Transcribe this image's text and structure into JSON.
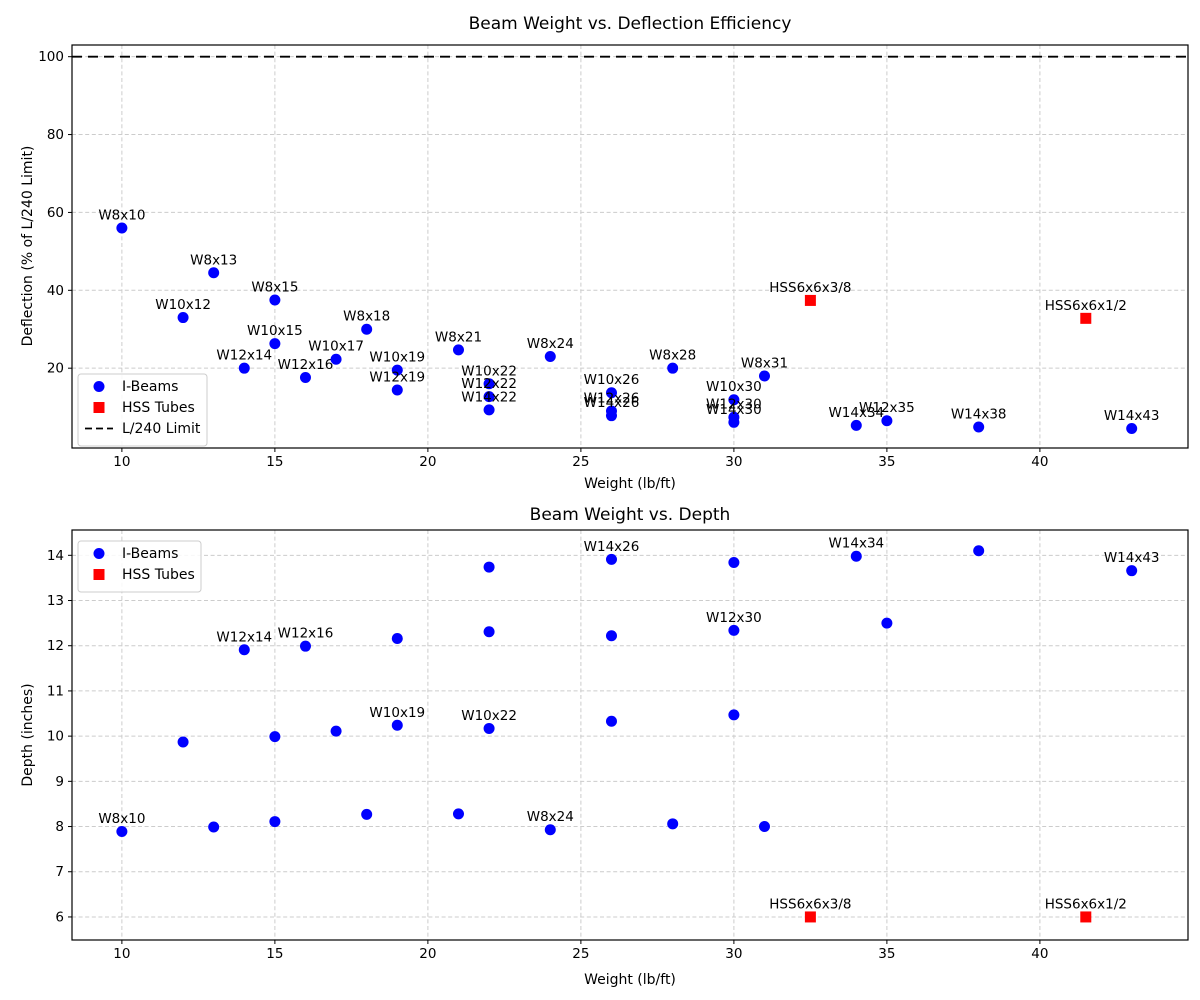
{
  "figure": {
    "background": "#ffffff",
    "ibeam_color": "#0000ff",
    "hss_color": "#ff0000",
    "limit_line_color": "#000000",
    "grid_color": "#cccccc"
  },
  "chart_data": [
    {
      "type": "scatter",
      "title": "Beam Weight vs. Deflection Efficiency",
      "xlabel": "Weight (lb/ft)",
      "ylabel": "Deflection (% of L/240 Limit)",
      "xlim": [
        8.37,
        44.84
      ],
      "ylim": [
        -0.5,
        103.0
      ],
      "xticks": [
        10,
        15,
        20,
        25,
        30,
        35,
        40
      ],
      "yticks": [
        20,
        40,
        60,
        80,
        100
      ],
      "grid": true,
      "reference_line": {
        "y": 100,
        "label": "L/240 Limit",
        "style": "dashed",
        "color": "#000000"
      },
      "legend": {
        "position": "lower-left",
        "entries": [
          {
            "label": "I-Beams",
            "marker": "circle",
            "color": "#0000ff"
          },
          {
            "label": "HSS Tubes",
            "marker": "square",
            "color": "#ff0000"
          },
          {
            "label": "L/240 Limit",
            "marker": "dashed-line",
            "color": "#000000"
          }
        ]
      },
      "series": [
        {
          "name": "I-Beams",
          "marker": "circle",
          "color": "#0000ff",
          "points": [
            {
              "label": "W8x10",
              "x": 10,
              "y": 56.0,
              "annotated": true
            },
            {
              "label": "W10x12",
              "x": 12,
              "y": 33.0,
              "annotated": true
            },
            {
              "label": "W8x13",
              "x": 13,
              "y": 44.5,
              "annotated": true
            },
            {
              "label": "W12x14",
              "x": 14,
              "y": 20.0,
              "annotated": true
            },
            {
              "label": "W8x15",
              "x": 15,
              "y": 37.5,
              "annotated": true
            },
            {
              "label": "W10x15",
              "x": 15,
              "y": 26.3,
              "annotated": true
            },
            {
              "label": "W12x16",
              "x": 16,
              "y": 17.6,
              "annotated": true
            },
            {
              "label": "W10x17",
              "x": 17,
              "y": 22.3,
              "annotated": true
            },
            {
              "label": "W8x18",
              "x": 18,
              "y": 30.0,
              "annotated": true
            },
            {
              "label": "W10x19",
              "x": 19,
              "y": 19.5,
              "annotated": true
            },
            {
              "label": "W12x19",
              "x": 19,
              "y": 14.4,
              "annotated": true
            },
            {
              "label": "W8x21",
              "x": 21,
              "y": 24.7,
              "annotated": true
            },
            {
              "label": "W10x22",
              "x": 22,
              "y": 16.0,
              "annotated": true
            },
            {
              "label": "W12x22",
              "x": 22,
              "y": 12.7,
              "annotated": true
            },
            {
              "label": "W14x22",
              "x": 22,
              "y": 9.3,
              "annotated": true
            },
            {
              "label": "W8x24",
              "x": 24,
              "y": 23.0,
              "annotated": true
            },
            {
              "label": "W10x26",
              "x": 26,
              "y": 13.7,
              "annotated": true
            },
            {
              "label": "W12x26",
              "x": 26,
              "y": 9.0,
              "annotated": true
            },
            {
              "label": "W14x26",
              "x": 26,
              "y": 7.8,
              "annotated": true
            },
            {
              "label": "W8x28",
              "x": 28,
              "y": 20.0,
              "annotated": true
            },
            {
              "label": "W10x30",
              "x": 30,
              "y": 11.9,
              "annotated": true
            },
            {
              "label": "W12x30",
              "x": 30,
              "y": 7.4,
              "annotated": true
            },
            {
              "label": "W14x30",
              "x": 30,
              "y": 6.1,
              "annotated": true
            },
            {
              "label": "W8x31",
              "x": 31,
              "y": 18.0,
              "annotated": true
            },
            {
              "label": "W14x34",
              "x": 34,
              "y": 5.3,
              "annotated": true
            },
            {
              "label": "W12x35",
              "x": 35,
              "y": 6.5,
              "annotated": true
            },
            {
              "label": "W14x38",
              "x": 38,
              "y": 4.9,
              "annotated": true
            },
            {
              "label": "W14x43",
              "x": 43,
              "y": 4.5,
              "annotated": true
            }
          ]
        },
        {
          "name": "HSS Tubes",
          "marker": "square",
          "color": "#ff0000",
          "points": [
            {
              "label": "HSS6x6x3/8",
              "x": 32.5,
              "y": 37.4,
              "annotated": true
            },
            {
              "label": "HSS6x6x1/2",
              "x": 41.5,
              "y": 32.8,
              "annotated": true
            }
          ]
        }
      ]
    },
    {
      "type": "scatter",
      "title": "Beam Weight vs. Depth",
      "xlabel": "Weight (lb/ft)",
      "ylabel": "Depth (inches)",
      "xlim": [
        8.37,
        44.84
      ],
      "ylim": [
        5.49,
        14.56
      ],
      "xticks": [
        10,
        15,
        20,
        25,
        30,
        35,
        40
      ],
      "yticks": [
        6,
        7,
        8,
        9,
        10,
        11,
        12,
        13,
        14
      ],
      "grid": true,
      "legend": {
        "position": "upper-left",
        "entries": [
          {
            "label": "I-Beams",
            "marker": "circle",
            "color": "#0000ff"
          },
          {
            "label": "HSS Tubes",
            "marker": "square",
            "color": "#ff0000"
          }
        ]
      },
      "series": [
        {
          "name": "I-Beams",
          "marker": "circle",
          "color": "#0000ff",
          "points": [
            {
              "label": "W8x10",
              "x": 10,
              "y": 7.89,
              "annotated": true
            },
            {
              "label": "W10x12",
              "x": 12,
              "y": 9.87,
              "annotated": false
            },
            {
              "label": "W8x13",
              "x": 13,
              "y": 7.99,
              "annotated": false
            },
            {
              "label": "W12x14",
              "x": 14,
              "y": 11.91,
              "annotated": true
            },
            {
              "label": "W8x15",
              "x": 15,
              "y": 8.11,
              "annotated": false
            },
            {
              "label": "W10x15",
              "x": 15,
              "y": 9.99,
              "annotated": false
            },
            {
              "label": "W12x16",
              "x": 16,
              "y": 11.99,
              "annotated": true
            },
            {
              "label": "W10x17",
              "x": 17,
              "y": 10.11,
              "annotated": false
            },
            {
              "label": "W8x18",
              "x": 18,
              "y": 8.27,
              "annotated": false
            },
            {
              "label": "W10x19",
              "x": 19,
              "y": 10.24,
              "annotated": true
            },
            {
              "label": "W12x19",
              "x": 19,
              "y": 12.16,
              "annotated": false
            },
            {
              "label": "W8x21",
              "x": 21,
              "y": 8.28,
              "annotated": false
            },
            {
              "label": "W10x22",
              "x": 22,
              "y": 10.17,
              "annotated": true
            },
            {
              "label": "W12x22",
              "x": 22,
              "y": 12.31,
              "annotated": false
            },
            {
              "label": "W14x22",
              "x": 22,
              "y": 13.74,
              "annotated": false
            },
            {
              "label": "W8x24",
              "x": 24,
              "y": 7.93,
              "annotated": true
            },
            {
              "label": "W10x26",
              "x": 26,
              "y": 10.33,
              "annotated": false
            },
            {
              "label": "W12x26",
              "x": 26,
              "y": 12.22,
              "annotated": false
            },
            {
              "label": "W14x26",
              "x": 26,
              "y": 13.91,
              "annotated": true
            },
            {
              "label": "W8x28",
              "x": 28,
              "y": 8.06,
              "annotated": false
            },
            {
              "label": "W10x30",
              "x": 30,
              "y": 10.47,
              "annotated": false
            },
            {
              "label": "W12x30",
              "x": 30,
              "y": 12.34,
              "annotated": true
            },
            {
              "label": "W14x30",
              "x": 30,
              "y": 13.84,
              "annotated": false
            },
            {
              "label": "W8x31",
              "x": 31,
              "y": 8.0,
              "annotated": false
            },
            {
              "label": "W14x34",
              "x": 34,
              "y": 13.98,
              "annotated": true
            },
            {
              "label": "W12x35",
              "x": 35,
              "y": 12.5,
              "annotated": false
            },
            {
              "label": "W14x38",
              "x": 38,
              "y": 14.1,
              "annotated": false
            },
            {
              "label": "W14x43",
              "x": 43,
              "y": 13.66,
              "annotated": true
            }
          ]
        },
        {
          "name": "HSS Tubes",
          "marker": "square",
          "color": "#ff0000",
          "points": [
            {
              "label": "HSS6x6x3/8",
              "x": 32.5,
              "y": 6.0,
              "annotated": true
            },
            {
              "label": "HSS6x6x1/2",
              "x": 41.5,
              "y": 6.0,
              "annotated": true
            }
          ]
        }
      ]
    }
  ]
}
